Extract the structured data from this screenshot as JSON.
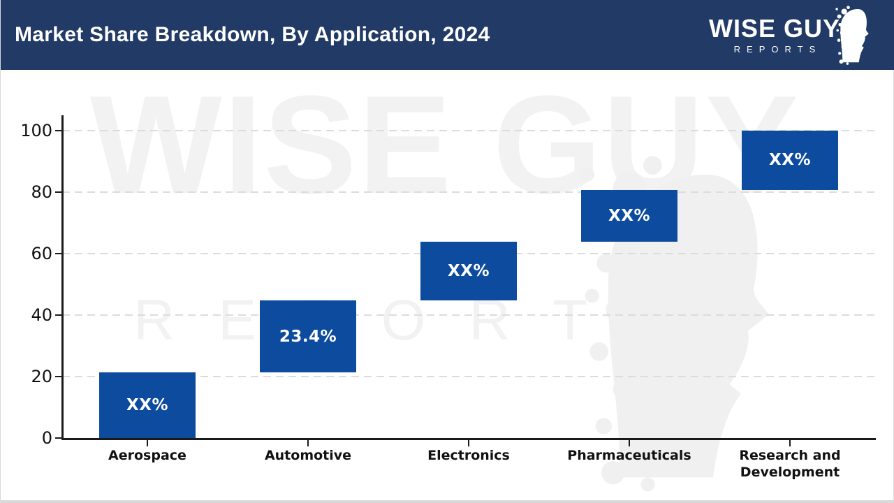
{
  "header": {
    "title": "Market Share Breakdown, By Application, 2024",
    "logo": {
      "line1": "WISE GUY",
      "line2": "REPORTS"
    }
  },
  "watermark": {
    "line1": "WISE GUY",
    "line2": "REPORTS"
  },
  "chart_data": {
    "type": "bar",
    "subtype": "waterfall-floating-bars",
    "title": "Market Share Breakdown, By Application, 2024",
    "categories": [
      "Aerospace",
      "Automotive",
      "Electronics",
      "Pharmaceuticals",
      "Research and Development"
    ],
    "segments": [
      {
        "category": "Aerospace",
        "start": 0,
        "end": 21.3,
        "label": "XX%"
      },
      {
        "category": "Automotive",
        "start": 21.3,
        "end": 44.7,
        "label": "23.4%"
      },
      {
        "category": "Electronics",
        "start": 44.7,
        "end": 63.9,
        "label": "XX%"
      },
      {
        "category": "Pharmaceuticals",
        "start": 63.9,
        "end": 80.7,
        "label": "XX%"
      },
      {
        "category": "Research and Development",
        "start": 80.7,
        "end": 100,
        "label": "XX%"
      }
    ],
    "yticks": [
      0,
      20,
      40,
      60,
      80,
      100
    ],
    "ylim": [
      0,
      100
    ],
    "xlabel": "",
    "ylabel": "",
    "grid": "horizontal-dashed",
    "legend": "none",
    "bar_color": "#0d4b9f",
    "bar_label_color": "#ffffff"
  },
  "colors": {
    "header_bg": "#213a66",
    "bar": "#0d4b9f",
    "grid": "#dcdcdc",
    "axis": "#1a1a1a",
    "watermark": "#f2f2f2",
    "footer_line": "#d9d9d9"
  }
}
